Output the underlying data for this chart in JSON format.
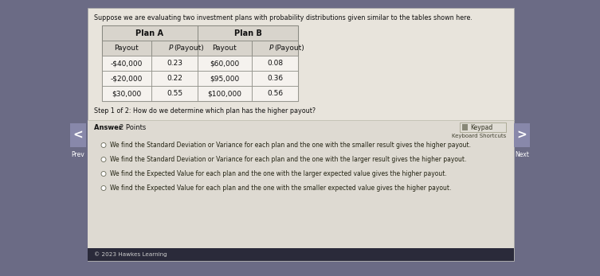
{
  "title": "Suppose we are evaluating two investment plans with probability distributions given similar to the tables shown here.",
  "plan_a_header": "Plan A",
  "plan_b_header": "Plan B",
  "plan_a_data": [
    [
      "-$40,000",
      "0.23"
    ],
    [
      "-$20,000",
      "0.22"
    ],
    [
      "$30,000",
      "0.55"
    ]
  ],
  "plan_b_data": [
    [
      "$60,000",
      "0.08"
    ],
    [
      "$95,000",
      "0.36"
    ],
    [
      "$100,000",
      "0.56"
    ]
  ],
  "step_text": "Step 1 of 2: How do we determine which plan has the higher payout?",
  "answer_label": "Answer  2 Points",
  "keypad_text": "Keypad",
  "keyboard_shortcuts_text": "Keyboard Shortcuts",
  "options": [
    "We find the Standard Deviation or Variance for each plan and the one with the smaller result gives the higher payout.",
    "We find the Standard Deviation or Variance for each plan and the one with the larger result gives the higher payout.",
    "We find the Expected Value for each plan and the one with the larger expected value gives the higher payout.",
    "We find the Expected Value for each plan and the one with the smaller expected value gives the higher payout."
  ],
  "nav_prev": "Prev",
  "nav_next": "Next",
  "footer_text": "© 2023 Hawkes Learning",
  "bg_outer": "#6b6b85",
  "bg_panel": "#e8e4dc",
  "bg_table_header": "#d8d4cc",
  "bg_table_data": "#f5f2ee",
  "bg_nav": "#7a7a9a",
  "bg_footer": "#2a2a3a",
  "text_dark": "#111111",
  "text_nav": "#ffffff",
  "text_footer": "#cccccc",
  "border_color": "#888880",
  "keypad_bg": "#e0ddd5",
  "keypad_border": "#999980"
}
